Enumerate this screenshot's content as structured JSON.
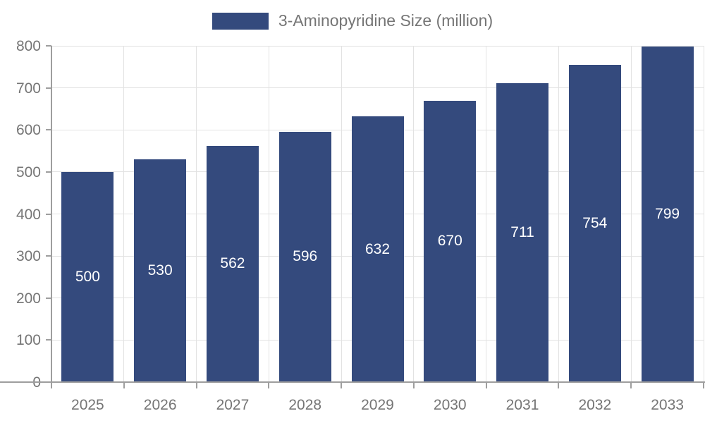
{
  "chart_data": {
    "type": "bar",
    "categories": [
      "2025",
      "2026",
      "2027",
      "2028",
      "2029",
      "2030",
      "2031",
      "2032",
      "2033"
    ],
    "series": [
      {
        "name": "3-Aminopyridine Size (million)",
        "values": [
          500,
          530,
          562,
          596,
          632,
          670,
          711,
          754,
          799
        ]
      }
    ],
    "bar_labels": [
      "500",
      "530",
      "562",
      "596",
      "632",
      "670",
      "711",
      "754",
      "799"
    ],
    "title": "",
    "xlabel": "",
    "ylabel": "",
    "ylim": [
      0,
      800
    ],
    "ytick_step": 100,
    "ytick_labels": [
      "0",
      "100",
      "200",
      "300",
      "400",
      "500",
      "600",
      "700",
      "800"
    ],
    "grid": "on",
    "legend_position": "top-center",
    "colors": {
      "bar": "#344a7d",
      "grid": "#e2e2e2",
      "axis": "#9e9e9e",
      "tick_label": "#757575",
      "bar_label": "#ffffff",
      "background": "#ffffff"
    }
  }
}
